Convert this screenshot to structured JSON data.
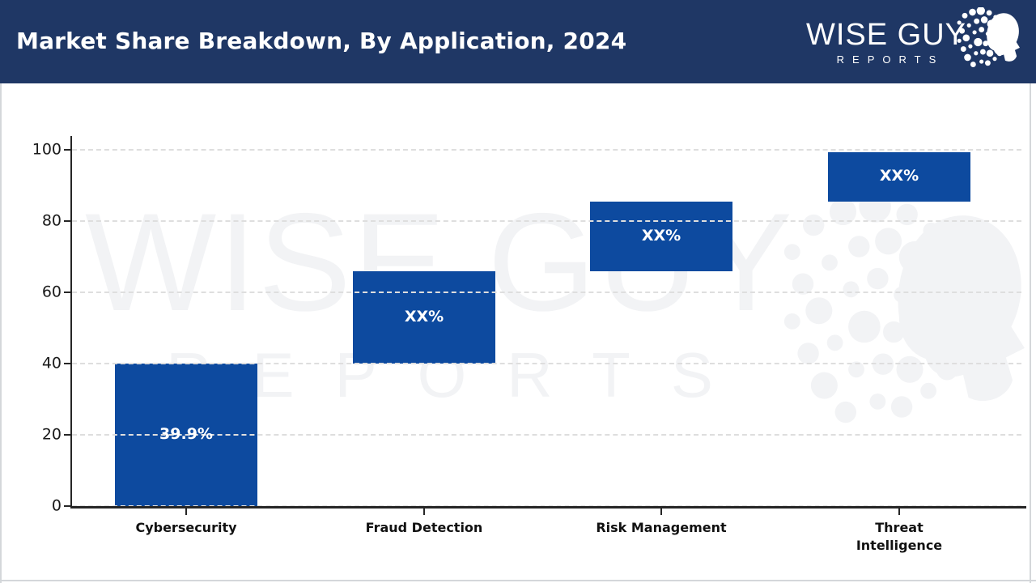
{
  "header": {
    "title": "Market Share Breakdown, By Application, 2024",
    "brand": {
      "line1": "WISE GUY",
      "line2": "REPORTS"
    }
  },
  "watermark": {
    "line1": "WISE GUY",
    "line2": "REPORTS"
  },
  "chart_data": {
    "type": "bar",
    "subtype": "waterfall-market-share",
    "title": "Market Share Breakdown, By Application, 2024",
    "categories": [
      [
        "Cybersecurity"
      ],
      [
        "Fraud Detection"
      ],
      [
        "Risk Management"
      ],
      [
        "Threat",
        "Intelligence"
      ]
    ],
    "segments": [
      {
        "category": "Cybersecurity",
        "start": 0,
        "end": 39.9,
        "label": "39.9%"
      },
      {
        "category": "Fraud Detection",
        "start": 39.9,
        "end": 66.0,
        "label": "XX%"
      },
      {
        "category": "Risk Management",
        "start": 66.0,
        "end": 85.5,
        "label": "XX%"
      },
      {
        "category": "Threat Intelligence",
        "start": 85.5,
        "end": 99.4,
        "label": "XX%"
      }
    ],
    "ylim": [
      0,
      100
    ],
    "yticks": [
      0,
      20,
      40,
      60,
      80,
      100
    ],
    "xlabel": "",
    "ylabel": "",
    "grid": {
      "axis": "y",
      "style": "dashed",
      "drawn_above_bars": true
    },
    "legend": null,
    "bar_color": "#0d4a9f",
    "value_label_color": "#ffffff",
    "grid_color": "#dedede",
    "axis_color": "#262626"
  },
  "colors": {
    "header_bg": "#1f3765",
    "bar": "#0d4a9f",
    "watermark": "#f2f3f5",
    "frame": "#d4d7da"
  }
}
